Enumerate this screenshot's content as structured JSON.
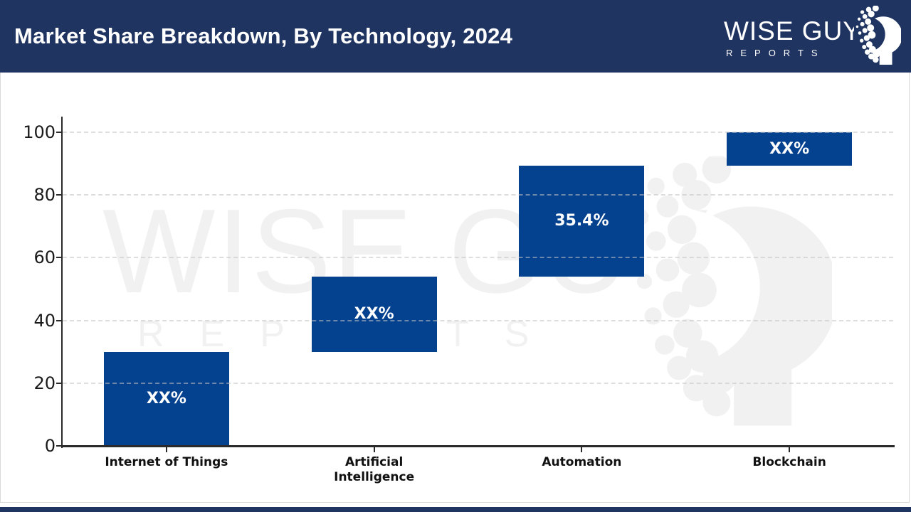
{
  "header": {
    "title": "Market Share Breakdown, By Technology, 2024",
    "logo": {
      "line1": "WISE GUY",
      "line2": "REPORTS"
    }
  },
  "watermark": {
    "line1": "WISE GUY",
    "line2": "REPORTS"
  },
  "colors": {
    "header_bg": "#203462",
    "footer_bg": "#203462",
    "bar_fill": "#04418f",
    "bar_label_text": "#ffffff",
    "axis": "#2a2a2a",
    "grid": "#dcdcdc",
    "watermark": "#f1f1f1"
  },
  "chart_data": {
    "type": "bar",
    "subtype": "waterfall",
    "title": "Market Share Breakdown, By Technology, 2024",
    "categories": [
      "Internet of Things",
      "Artificial\nIntelligence",
      "Automation",
      "Blockchain"
    ],
    "bars": [
      {
        "category": "Internet of Things",
        "label": "XX%",
        "start": 0,
        "end": 30
      },
      {
        "category": "Artificial Intelligence",
        "label": "XX%",
        "start": 30,
        "end": 54
      },
      {
        "category": "Automation",
        "label": "35.4%",
        "start": 54,
        "end": 89.4
      },
      {
        "category": "Blockchain",
        "label": "XX%",
        "start": 89.4,
        "end": 100
      }
    ],
    "xlabel": "",
    "ylabel": "",
    "ylim": [
      0,
      105
    ],
    "yticks": [
      0,
      20,
      40,
      60,
      80,
      100
    ],
    "grid": "horizontal-dashed",
    "legend": "none"
  }
}
